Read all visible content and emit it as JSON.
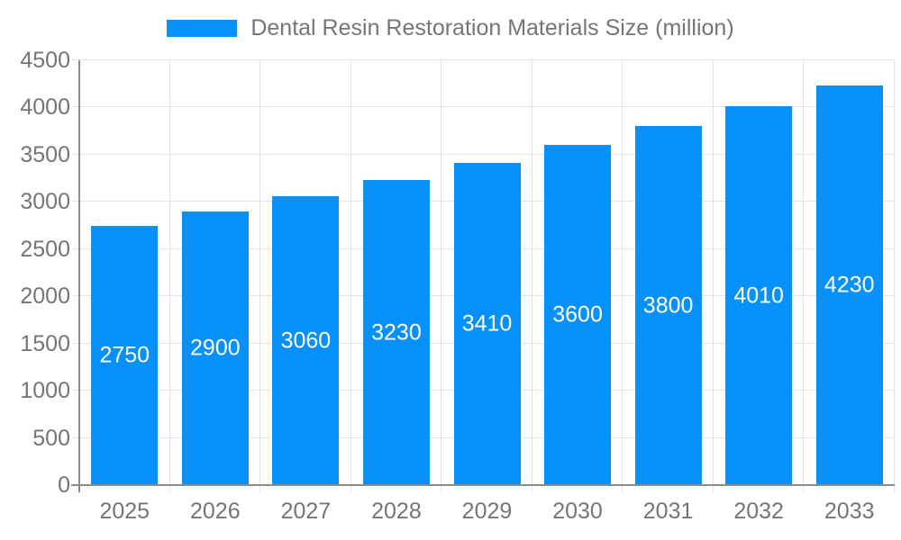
{
  "legend": {
    "label": "Dental Resin Restoration Materials Size (million)"
  },
  "chart_data": {
    "type": "bar",
    "title": "Dental Resin Restoration Materials Size (million)",
    "categories": [
      "2025",
      "2026",
      "2027",
      "2028",
      "2029",
      "2030",
      "2031",
      "2032",
      "2033"
    ],
    "values": [
      2750,
      2900,
      3060,
      3230,
      3410,
      3600,
      3800,
      4010,
      4230
    ],
    "series": [
      {
        "name": "Dental Resin Restoration Materials Size (million)",
        "values": [
          2750,
          2900,
          3060,
          3230,
          3410,
          3600,
          3800,
          4010,
          4230
        ]
      }
    ],
    "xlabel": "",
    "ylabel": "",
    "ylim": [
      0,
      4500
    ],
    "yticks": [
      0,
      500,
      1000,
      1500,
      2000,
      2500,
      3000,
      3500,
      4000,
      4500
    ],
    "grid": true,
    "value_labels": "inside-center",
    "legend_position": "top-center",
    "colors": {
      "bar": "#0690fa",
      "bar_label": "#ffffff",
      "axis_text": "#757575",
      "grid_line": "#e3e3e3",
      "axis_line": "#8c8c8c",
      "background": "#ffffff"
    }
  }
}
